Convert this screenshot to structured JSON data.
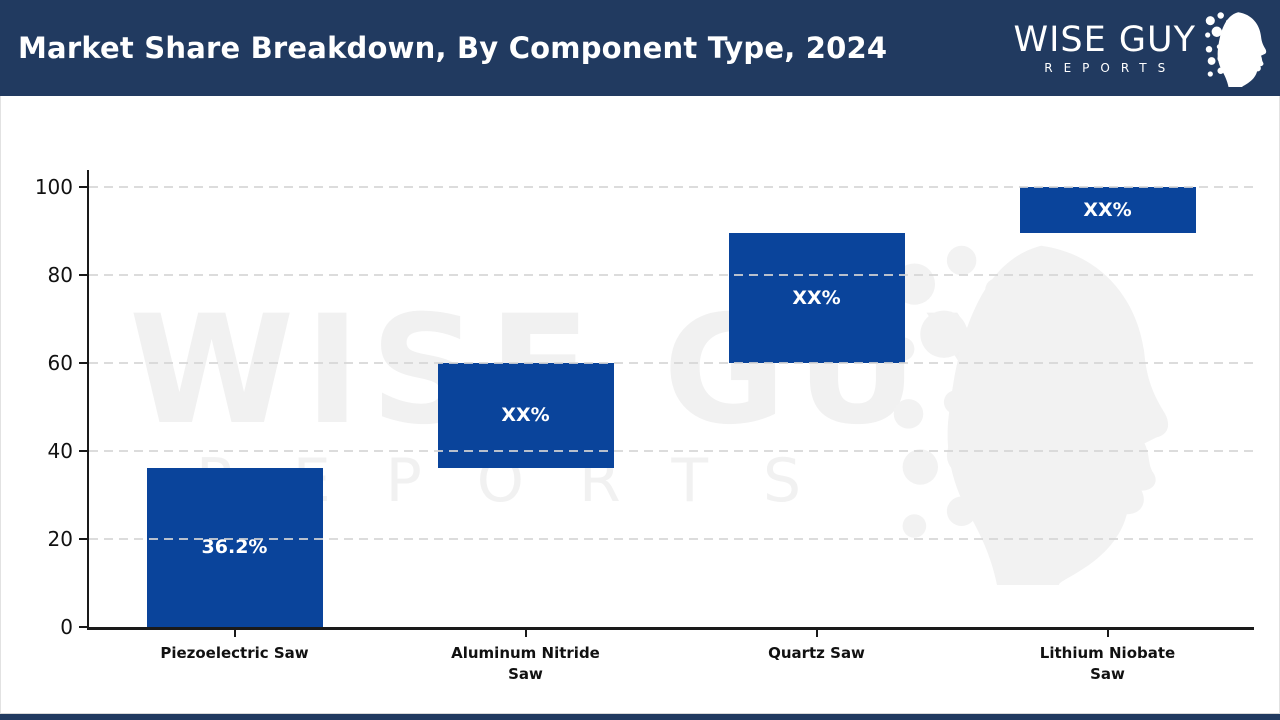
{
  "header": {
    "title": "Market Share Breakdown, By Component Type, 2024",
    "logo": {
      "line1": "WISE GUY",
      "line2": "REPORTS"
    }
  },
  "watermark": {
    "line1": "WISE GUY",
    "line2": "REPORTS"
  },
  "colors": {
    "header_bg": "#213A60",
    "footer_bg": "#213A60",
    "bar_fill": "#0A449B",
    "bar_label_text": "#FFFFFF",
    "grid_line": "#D6D6D6",
    "axis_line": "#1A1A1A",
    "tick_text": "#111111",
    "watermark": "#F1F1F1"
  },
  "chart_data": {
    "type": "bar",
    "subtype": "waterfall-floating-bars",
    "title": "Market Share Breakdown, By Component Type, 2024",
    "xlabel": "",
    "ylabel": "",
    "ylim": [
      0,
      100
    ],
    "yticks": [
      0,
      20,
      40,
      60,
      80,
      100
    ],
    "grid": "horizontal-dashed",
    "legend": "none",
    "categories": [
      "Piezoelectric Saw",
      "Aluminum Nitride Saw",
      "Quartz Saw",
      "Lithium Niobate Saw"
    ],
    "segments": [
      {
        "category": "Piezoelectric Saw",
        "start": 0,
        "end": 36.2,
        "label": "36.2%"
      },
      {
        "category": "Aluminum Nitride Saw",
        "start": 36.2,
        "end": 60,
        "label": "XX%"
      },
      {
        "category": "Quartz Saw",
        "start": 60,
        "end": 89.5,
        "label": "XX%"
      },
      {
        "category": "Lithium Niobate Saw",
        "start": 89.5,
        "end": 100,
        "label": "XX%"
      }
    ]
  }
}
